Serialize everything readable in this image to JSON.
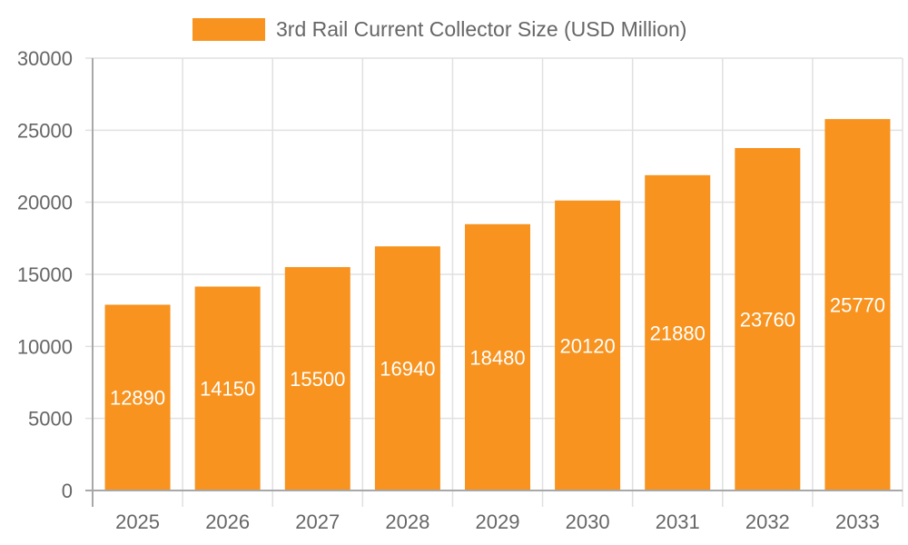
{
  "chart_data": {
    "type": "bar",
    "title": "",
    "legend": [
      {
        "label": "3rd Rail Current Collector Size (USD Million)",
        "color": "#f7931e"
      }
    ],
    "legend_position": "top",
    "categories": [
      "2025",
      "2026",
      "2027",
      "2028",
      "2029",
      "2030",
      "2031",
      "2032",
      "2033"
    ],
    "series": [
      {
        "name": "3rd Rail Current Collector Size (USD Million)",
        "values": [
          12890,
          14150,
          15500,
          16940,
          18480,
          20120,
          21880,
          23760,
          25770
        ],
        "color": "#f7931e"
      }
    ],
    "xlabel": "",
    "ylabel": "",
    "ylim": [
      0,
      30000
    ],
    "yticks": [
      0,
      5000,
      10000,
      15000,
      20000,
      25000,
      30000
    ],
    "grid": true,
    "data_labels": true
  },
  "legend": {
    "label": "3rd Rail Current Collector Size (USD Million)"
  }
}
